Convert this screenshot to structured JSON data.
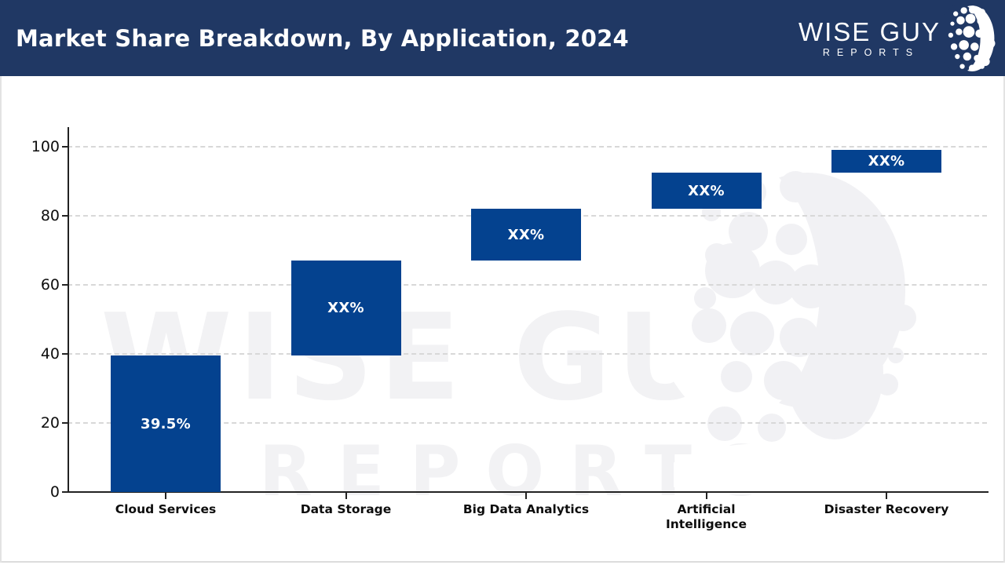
{
  "header": {
    "title": "Market Share Breakdown, By Application, 2024",
    "background_color": "#203864",
    "logo": {
      "line1": "WISE GUY",
      "line2": "REPORTS"
    }
  },
  "watermark": {
    "line1": "WISE GUY",
    "line2": "REPORTS"
  },
  "chart_data": {
    "type": "bar",
    "subtype": "waterfall",
    "title": "Market Share Breakdown, By Application, 2024",
    "xlabel": "",
    "ylabel": "",
    "categories": [
      "Cloud Services",
      "Data Storage",
      "Big Data Analytics",
      "Artificial Intelligence",
      "Disaster Recovery"
    ],
    "segments": [
      {
        "category": "Cloud Services",
        "start": 0,
        "end": 39.5,
        "label": "39.5%"
      },
      {
        "category": "Data Storage",
        "start": 39.5,
        "end": 67,
        "label": "XX%"
      },
      {
        "category": "Big Data Analytics",
        "start": 67,
        "end": 82,
        "label": "XX%"
      },
      {
        "category": "Artificial Intelligence",
        "start": 82,
        "end": 92.5,
        "label": "XX%"
      },
      {
        "category": "Disaster Recovery",
        "start": 92.5,
        "end": 99,
        "label": "XX%"
      }
    ],
    "yticks": [
      0,
      20,
      40,
      60,
      80,
      100
    ],
    "ylim": [
      0,
      106
    ],
    "grid": "horizontal dashed, light gray",
    "legend": "none",
    "bar_color": "#04428f",
    "bar_label_color": "#ffffff",
    "axis_color": "#222222"
  }
}
